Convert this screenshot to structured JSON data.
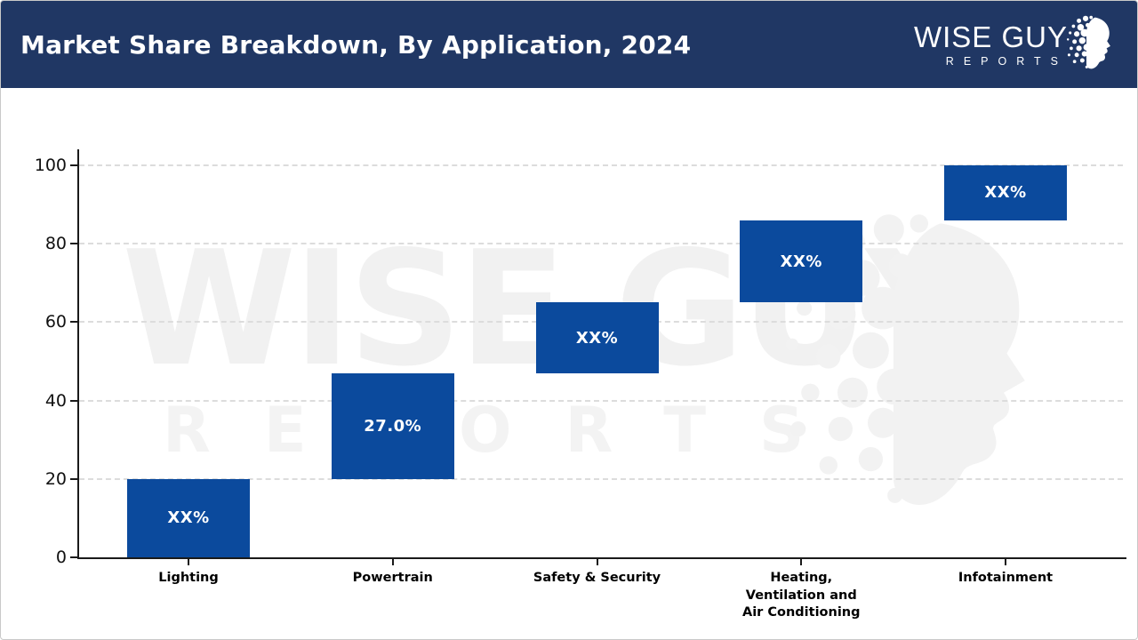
{
  "header": {
    "title": "Market Share Breakdown, By Application, 2024",
    "logo": {
      "line1": "WISE GUY",
      "line2": "REPORTS"
    }
  },
  "watermark": {
    "line1": "WISE GUY",
    "line2": "REPORTS"
  },
  "chart_data": {
    "type": "bar",
    "subtype": "waterfall",
    "title": "Market Share Breakdown, By Application, 2024",
    "categories": [
      "Lighting",
      "Powertrain",
      "Safety & Security",
      "Heating,\nVentilation and\nAir Conditioning",
      "Infotainment"
    ],
    "values": [
      20,
      27,
      18,
      21,
      14
    ],
    "cumulative_ranges": [
      [
        0,
        20
      ],
      [
        20,
        47
      ],
      [
        47,
        65
      ],
      [
        65,
        86
      ],
      [
        86,
        100
      ]
    ],
    "bar_labels": [
      "XX%",
      "27.0%",
      "XX%",
      "XX%",
      "XX%"
    ],
    "yticks": [
      0,
      20,
      40,
      60,
      80,
      100
    ],
    "ylim": [
      0,
      100
    ],
    "xlabel": "",
    "ylabel": "",
    "grid": "horizontal-dashed",
    "legend": "none",
    "bar_color": "#0b4a9d",
    "axis_color": "#1a1a1a",
    "gridline_color": "#dcdcdc",
    "header_color": "#203764"
  }
}
